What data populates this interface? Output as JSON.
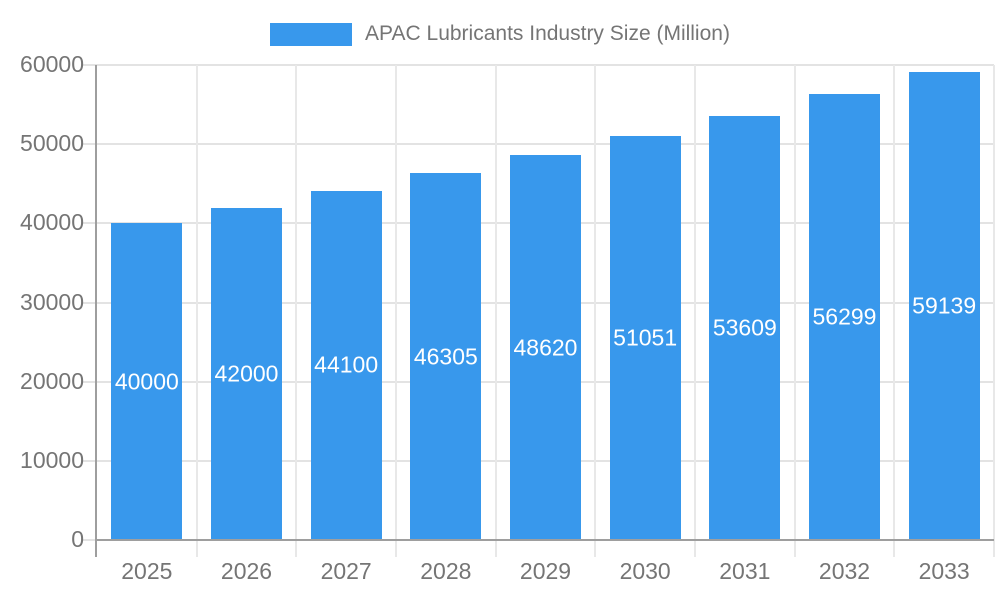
{
  "chart_data": {
    "type": "bar",
    "title": "APAC Lubricants Industry Size (Million)",
    "categories": [
      "2025",
      "2026",
      "2027",
      "2028",
      "2029",
      "2030",
      "2031",
      "2032",
      "2033"
    ],
    "values": [
      40000,
      42000,
      44100,
      46305,
      48620,
      51051,
      53609,
      56299,
      59139
    ],
    "value_labels": [
      "40000",
      "42000",
      "44100",
      "46305",
      "48620",
      "51051",
      "53609",
      "56299",
      "59139"
    ],
    "xlabel": "",
    "ylabel": "",
    "ylim": [
      0,
      60000
    ],
    "yticks": [
      0,
      10000,
      20000,
      30000,
      40000,
      50000,
      60000
    ],
    "ytick_labels": [
      "0",
      "10000",
      "20000",
      "30000",
      "40000",
      "50000",
      "60000"
    ],
    "legend_position": "top",
    "grid": true,
    "value_label_position": "center-of-bar"
  },
  "colors": {
    "bar": "#3898EC",
    "bar_label": "#FFFFFF",
    "axis_line": "#9E9E9E",
    "gridline": "#E3E3E3",
    "boundary_line": "#E8E8E8",
    "text": "#757575",
    "background": "#FFFFFF"
  }
}
